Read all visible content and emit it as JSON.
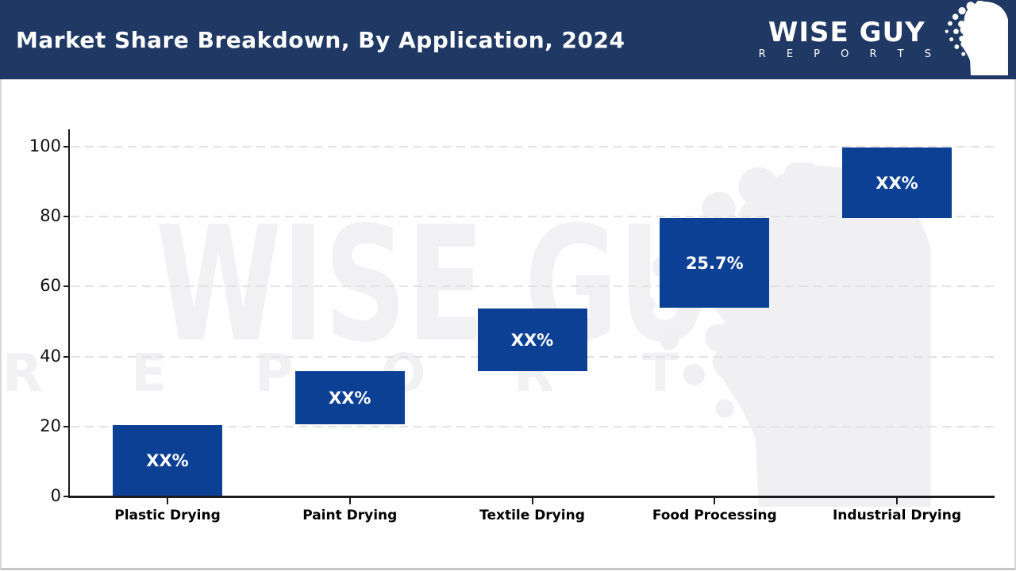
{
  "header": {
    "bg_color": "#1f3864",
    "title": "Market Share Breakdown, By Application, 2024",
    "logo": {
      "line1": "WISE GUY",
      "line2": "R E P O R T S"
    }
  },
  "watermark": {
    "line1": "WISE GUY",
    "line2": "R E P O R T S"
  },
  "chart_data": {
    "type": "bar",
    "subtype": "waterfall",
    "title": "Market Share Breakdown, By Application, 2024",
    "categories": [
      "Plastic Drying",
      "Paint Drying",
      "Textile Drying",
      "Food Processing",
      "Industrial Drying"
    ],
    "bars": [
      {
        "category": "Plastic Drying",
        "start": 0,
        "end": 20.4,
        "size": 20.4,
        "label": "XX%"
      },
      {
        "category": "Paint Drying",
        "start": 20.6,
        "end": 35.9,
        "size": 15.3,
        "label": "XX%"
      },
      {
        "category": "Textile Drying",
        "start": 35.9,
        "end": 53.8,
        "size": 17.9,
        "label": "XX%"
      },
      {
        "category": "Food Processing",
        "start": 53.9,
        "end": 79.6,
        "size": 25.7,
        "label": "25.7%"
      },
      {
        "category": "Industrial Drying",
        "start": 79.7,
        "end": 99.8,
        "size": 20.1,
        "label": "XX%"
      }
    ],
    "yticks": [
      0,
      20,
      40,
      60,
      80,
      100
    ],
    "ylim": [
      0,
      105
    ],
    "xlabel": "",
    "ylabel": "",
    "grid": "horizontal-dashed",
    "legend": "none",
    "colors": {
      "bar": "#0c4094",
      "bar_label": "#ffffff",
      "axis": "#1c1c1c",
      "tick_label": "#111111",
      "gridline": "#e2e2e2",
      "header_bg": "#1f3864",
      "watermark": "#f1f1f4"
    }
  }
}
